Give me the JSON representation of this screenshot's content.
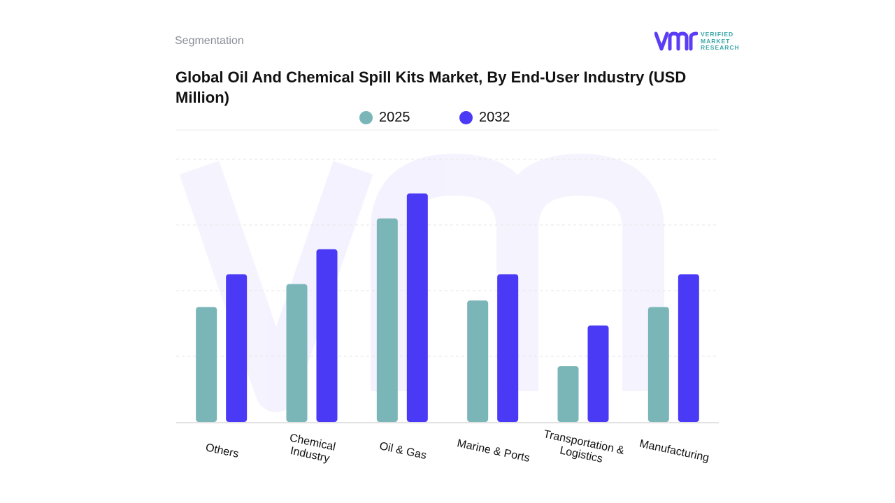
{
  "header": {
    "section_label": "Segmentation",
    "title": "Global Oil And Chemical Spill Kits Market, By End-User Industry (USD Million)"
  },
  "logo": {
    "icon": "vmr-logo-icon",
    "lines": [
      "VERIFIED",
      "MARKET",
      "RESEARCH"
    ],
    "color": "#5b3df5"
  },
  "chart_data": {
    "type": "bar",
    "title": "Global Oil And Chemical Spill Kits Market, By End-User Industry (USD Million)",
    "xlabel": "",
    "ylabel": "",
    "categories": [
      "Others",
      "Chemical Industry",
      "Oil & Gas",
      "Marine & Ports",
      "Transportation & Logistics",
      "Manufacturing"
    ],
    "series": [
      {
        "name": "2025",
        "color": "#7ab5b8",
        "values": [
          1.75,
          2.1,
          3.1,
          1.85,
          0.85,
          1.75
        ]
      },
      {
        "name": "2032",
        "color": "#4b3af5",
        "values": [
          2.25,
          2.63,
          3.48,
          2.25,
          1.47,
          2.25
        ]
      }
    ],
    "ylim": [
      0,
      4
    ],
    "grid": true,
    "legend_position": "top-center"
  }
}
